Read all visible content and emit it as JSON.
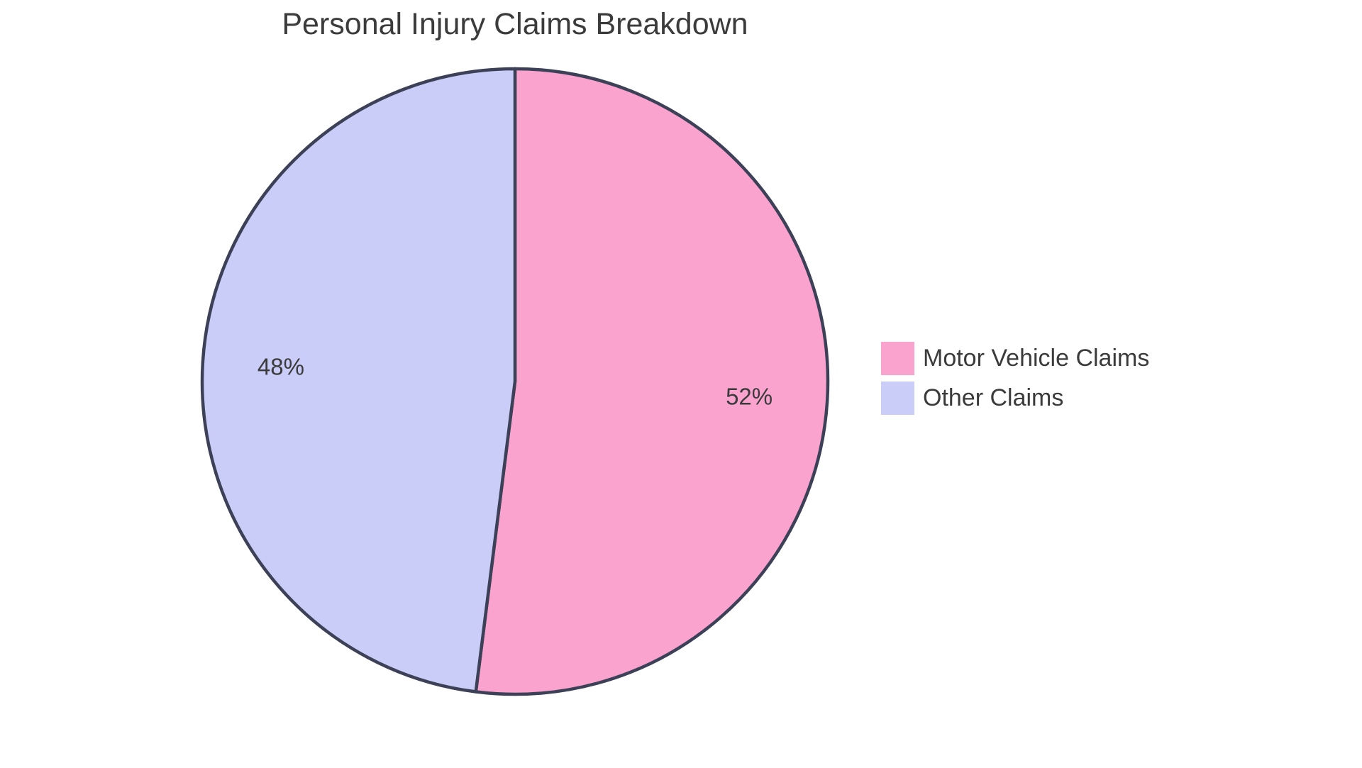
{
  "chart_data": {
    "type": "pie",
    "title": "Personal Injury Claims Breakdown",
    "labels": [
      "Motor Vehicle Claims",
      "Other Claims"
    ],
    "values": [
      52,
      48
    ],
    "slice_labels": [
      "52%",
      "48%"
    ],
    "colors": [
      "#f9a3ce",
      "#c9cdf8"
    ],
    "slice_stroke_color": "#3d4158",
    "slice_stroke_width": 4.5,
    "start_angle": "12-oclock",
    "direction": "clockwise",
    "legend_position": "right",
    "label_color": "#3b3b3b",
    "background": "#ffffff"
  }
}
